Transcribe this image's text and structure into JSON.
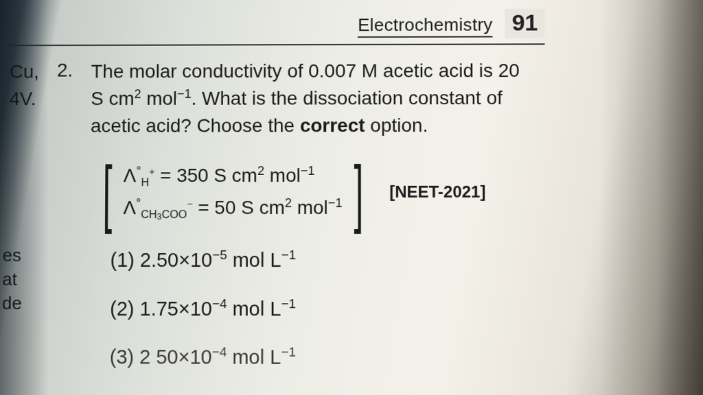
{
  "header": {
    "chapter_title": "Electrochemistry",
    "page_number": "91"
  },
  "margin_left": {
    "line1": "Cu,",
    "line2": "4V."
  },
  "question": {
    "number": "2.",
    "line1": "The molar conductivity of 0.007 M acetic acid is 20",
    "line2_a": "S cm",
    "line2_exp": "2",
    "line2_b": " mol",
    "line2_exp2": "−1",
    "line2_c": ". What is the dissociation constant of",
    "line3_a": "acetic acid? Choose the ",
    "line3_bold": "correct",
    "line3_b": " option."
  },
  "given": {
    "r1_a": "Λ",
    "r1_sub": "H",
    "r1_supdeg": "°",
    "r1_subplus": "+",
    "r1_eq": " = 350 S cm",
    "r1_e2": "2",
    "r1_mol": " mol",
    "r1_e3": "−1",
    "r2_a": "Λ",
    "r2_sub": "CH",
    "r2_sub3": "3",
    "r2_subcoo": "COO",
    "r2_subminus": "−",
    "r2_supdeg": "°",
    "r2_eq": " = 50 S cm",
    "r2_e2": "2",
    "r2_mol": " mol",
    "r2_e3": "−1"
  },
  "tag": "[NEET-2021]",
  "side": {
    "s1": "es",
    "s2": "at",
    "s3": "de"
  },
  "options": {
    "o1_n": "(1)  ",
    "o1_a": "2.50×10",
    "o1_e": "−5",
    "o1_b": " mol L",
    "o1_e2": "−1",
    "o2_n": "(2)  ",
    "o2_a": "1.75×10",
    "o2_e": "−4",
    "o2_b": " mol L",
    "o2_e2": "−1",
    "o3_n": "(3)  ",
    "o3_a": "2 50×10",
    "o3_e": "−4",
    "o3_b": " mol L",
    "o3_e2": "−1"
  }
}
